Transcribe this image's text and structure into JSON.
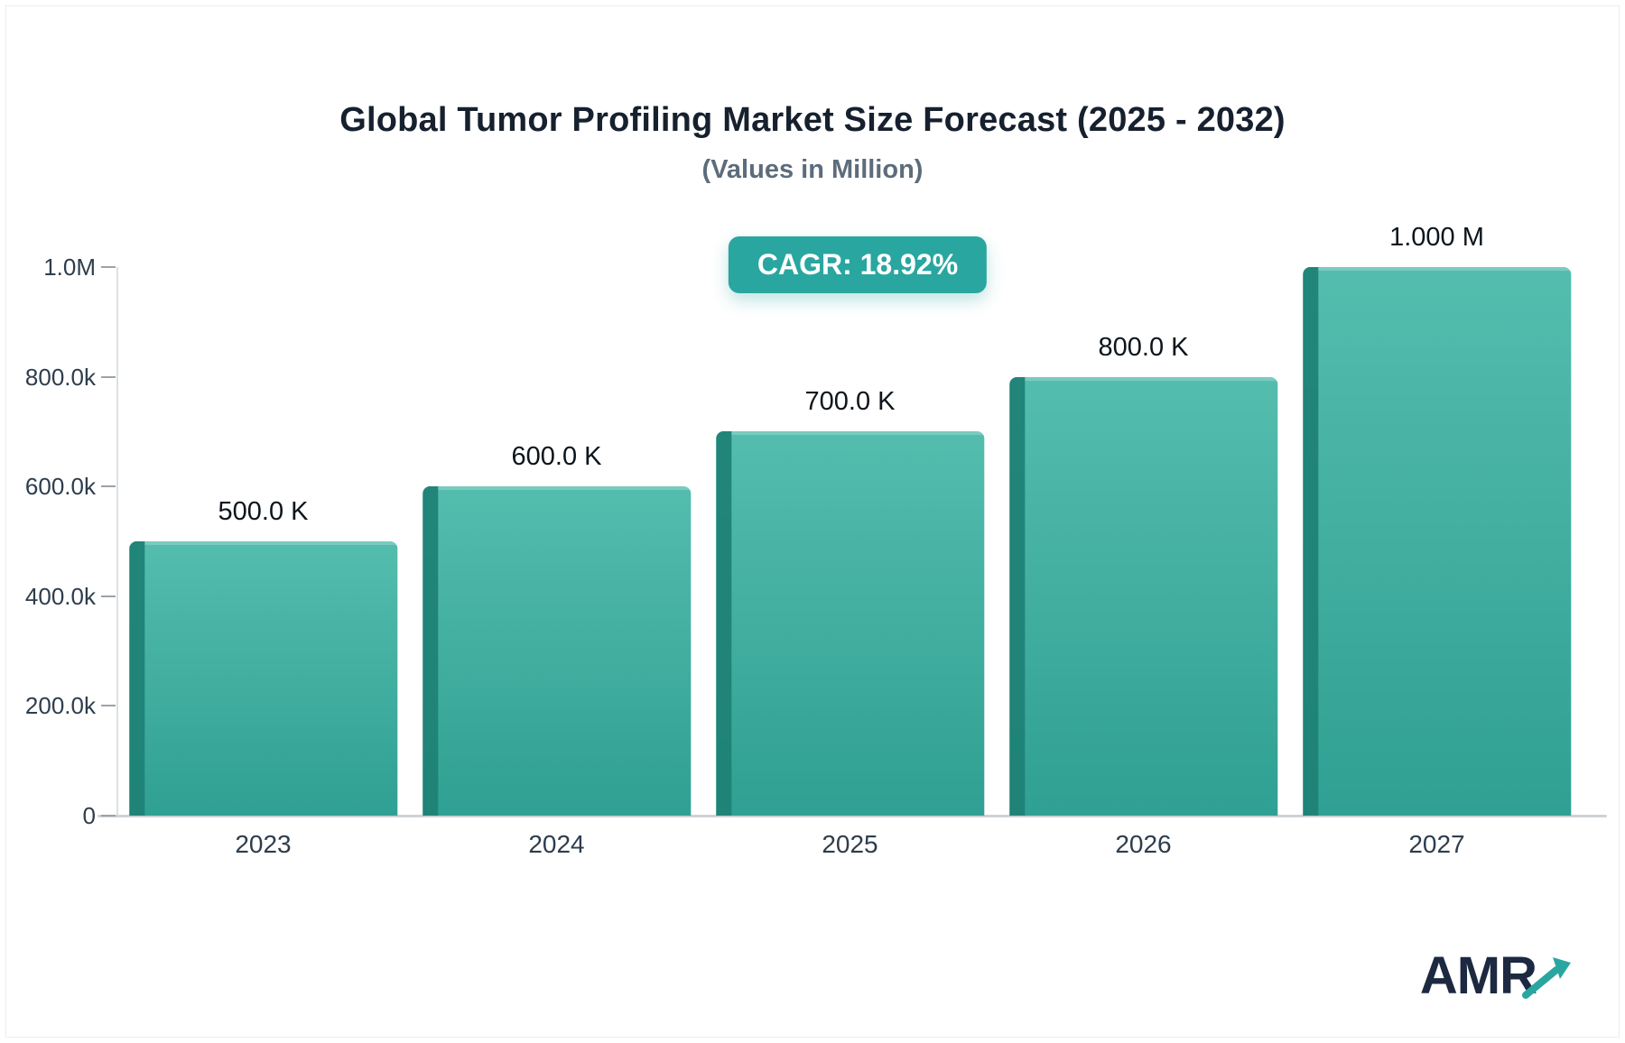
{
  "header": {
    "title": "Global Tumor Profiling Market Size Forecast (2025 - 2032)",
    "subtitle": "(Values in Million)"
  },
  "badge": {
    "label": "CAGR: 18.92%",
    "color": "#2aa6a0"
  },
  "chart_data": {
    "type": "bar",
    "title": "Global Tumor Profiling Market Size Forecast (2025 - 2032)",
    "subtitle": "(Values in Million)",
    "categories": [
      "2023",
      "2024",
      "2025",
      "2026",
      "2027"
    ],
    "values": [
      500000,
      600000,
      700000,
      800000,
      1000000
    ],
    "value_labels": [
      "500.0 K",
      "600.0 K",
      "700.0 K",
      "800.0 K",
      "1.000 M"
    ],
    "ylim": [
      0,
      1000000
    ],
    "y_ticks": [
      {
        "value": 0,
        "label": "0"
      },
      {
        "value": 200000,
        "label": "200.0k"
      },
      {
        "value": 400000,
        "label": "400.0k"
      },
      {
        "value": 600000,
        "label": "600.0k"
      },
      {
        "value": 800000,
        "label": "800.0k"
      },
      {
        "value": 1000000,
        "label": "1.0M"
      }
    ],
    "annotations": [
      "CAGR: 18.92%"
    ],
    "grid": false,
    "legend": false,
    "bar_gradient_top": "#54bdae",
    "bar_gradient_bottom": "#2fa093",
    "bar_side_color": "#1f8276"
  },
  "logo": {
    "text": "AMR",
    "arrow_color": "#2aa6a0",
    "text_color": "#1c2940"
  }
}
